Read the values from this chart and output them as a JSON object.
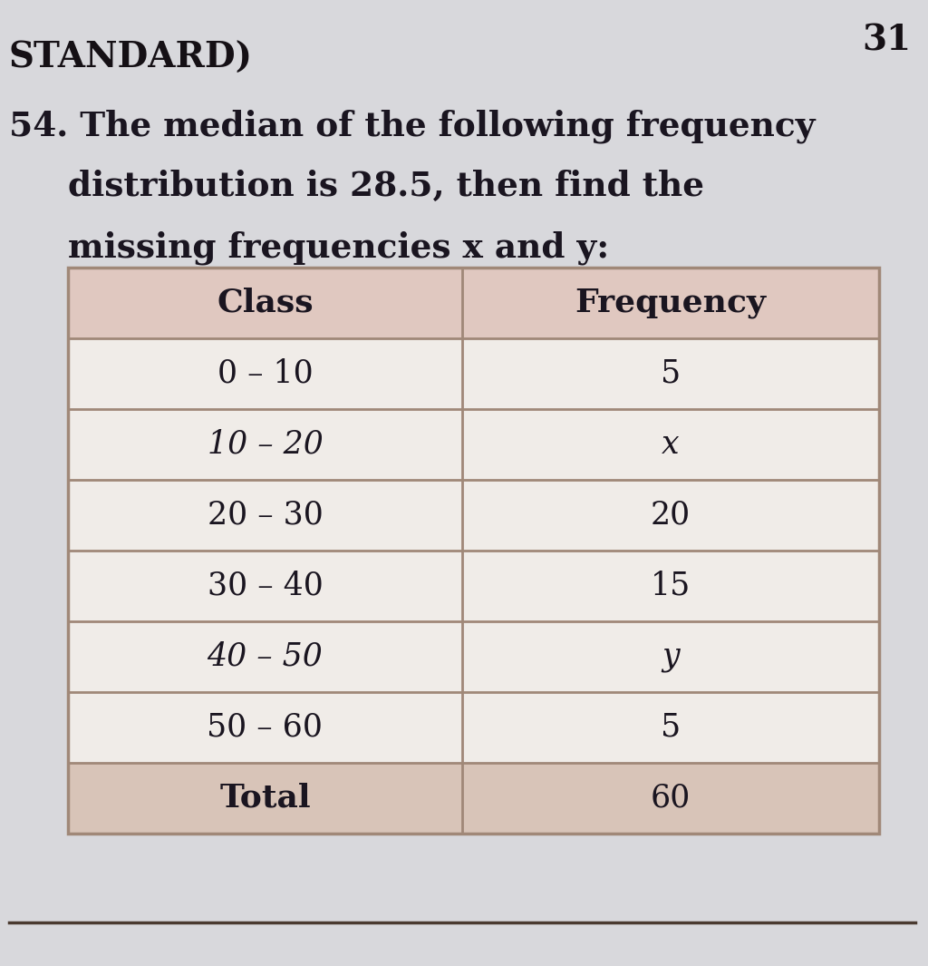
{
  "page_number": "31",
  "header_text": "STANDARD)",
  "question_number": "54.",
  "question_line1": "The median of the following frequency",
  "question_line2": "distribution is 28.5, then find the",
  "question_line3": "missing frequencies x and y:",
  "table_headers": [
    "Class",
    "Frequency"
  ],
  "table_rows": [
    [
      "0 – 10",
      "5"
    ],
    [
      "10 – 20",
      "x"
    ],
    [
      "20 – 30",
      "20"
    ],
    [
      "30 – 40",
      "15"
    ],
    [
      "40 – 50",
      "y"
    ],
    [
      "50 – 60",
      "5"
    ]
  ],
  "table_footer": [
    "Total",
    "60"
  ],
  "page_bg": "#d8d8dc",
  "table_bg_data": "#f0ece8",
  "table_bg_header": "#e0c8c0",
  "table_bg_total": "#d8c4b8",
  "table_border_color": "#a08878",
  "text_color": "#1a1520",
  "header_text_color": "#151015",
  "bottom_line_color": "#4a3a30",
  "page_number_color": "#151015"
}
